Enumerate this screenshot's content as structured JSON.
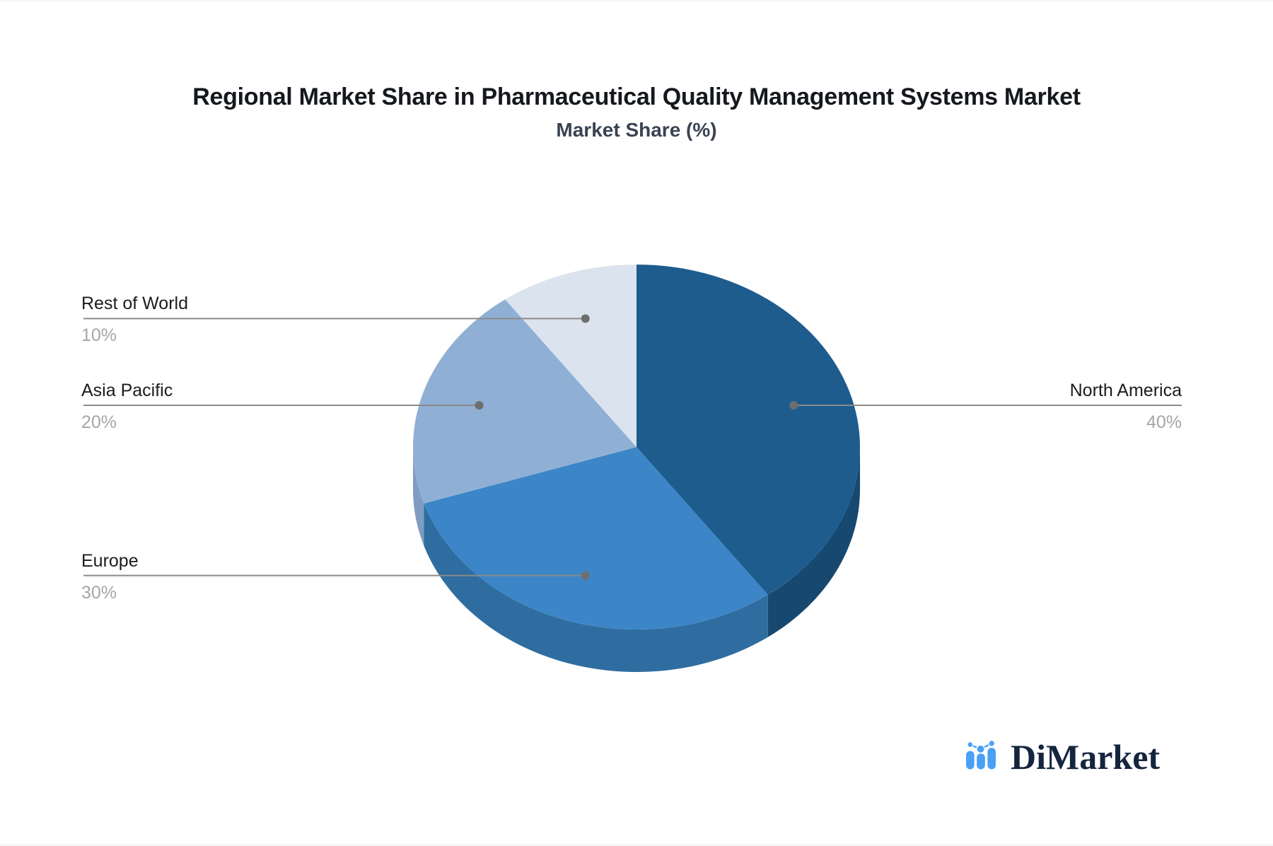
{
  "header": {
    "title": "Regional Market Share in Pharmaceutical Quality Management Systems Market",
    "subtitle": "Market Share (%)"
  },
  "chart_data": {
    "type": "pie",
    "title": "Regional Market Share in Pharmaceutical Quality Management Systems Market",
    "subtitle": "Market Share (%)",
    "unit": "%",
    "effect": "3d",
    "direction": "clockwise",
    "start_angle_deg": 0,
    "legend_position": "callout-labels",
    "slices": [
      {
        "label": "North America",
        "value": 40,
        "display": "40%",
        "color": "#1E5C8E",
        "side_color": "#17486F",
        "label_side": "right"
      },
      {
        "label": "Europe",
        "value": 30,
        "display": "30%",
        "color": "#3C86C8",
        "side_color": "#2F6DA0",
        "label_side": "left"
      },
      {
        "label": "Asia Pacific",
        "value": 20,
        "display": "20%",
        "color": "#8FB0D4",
        "side_color": "#7E9DC0",
        "label_side": "left"
      },
      {
        "label": "Rest of World",
        "value": 10,
        "display": "10%",
        "color": "#DBE3EE",
        "side_color": "#C9D3E2",
        "label_side": "left"
      }
    ],
    "callout": {
      "line_color": "#8A8A8A",
      "dot_color": "#6E6E6E"
    }
  },
  "branding": {
    "logo_text": "DiMarket",
    "logo_icon": "bar-chart-trend-icon",
    "logo_blue": "#4AA0F5"
  },
  "style": {
    "title_color": "#15181d",
    "subtitle_color": "#3a4352",
    "label_color": "#1c1c1c",
    "pct_color": "#a6a6a6",
    "logo_text_color": "#16253e"
  }
}
